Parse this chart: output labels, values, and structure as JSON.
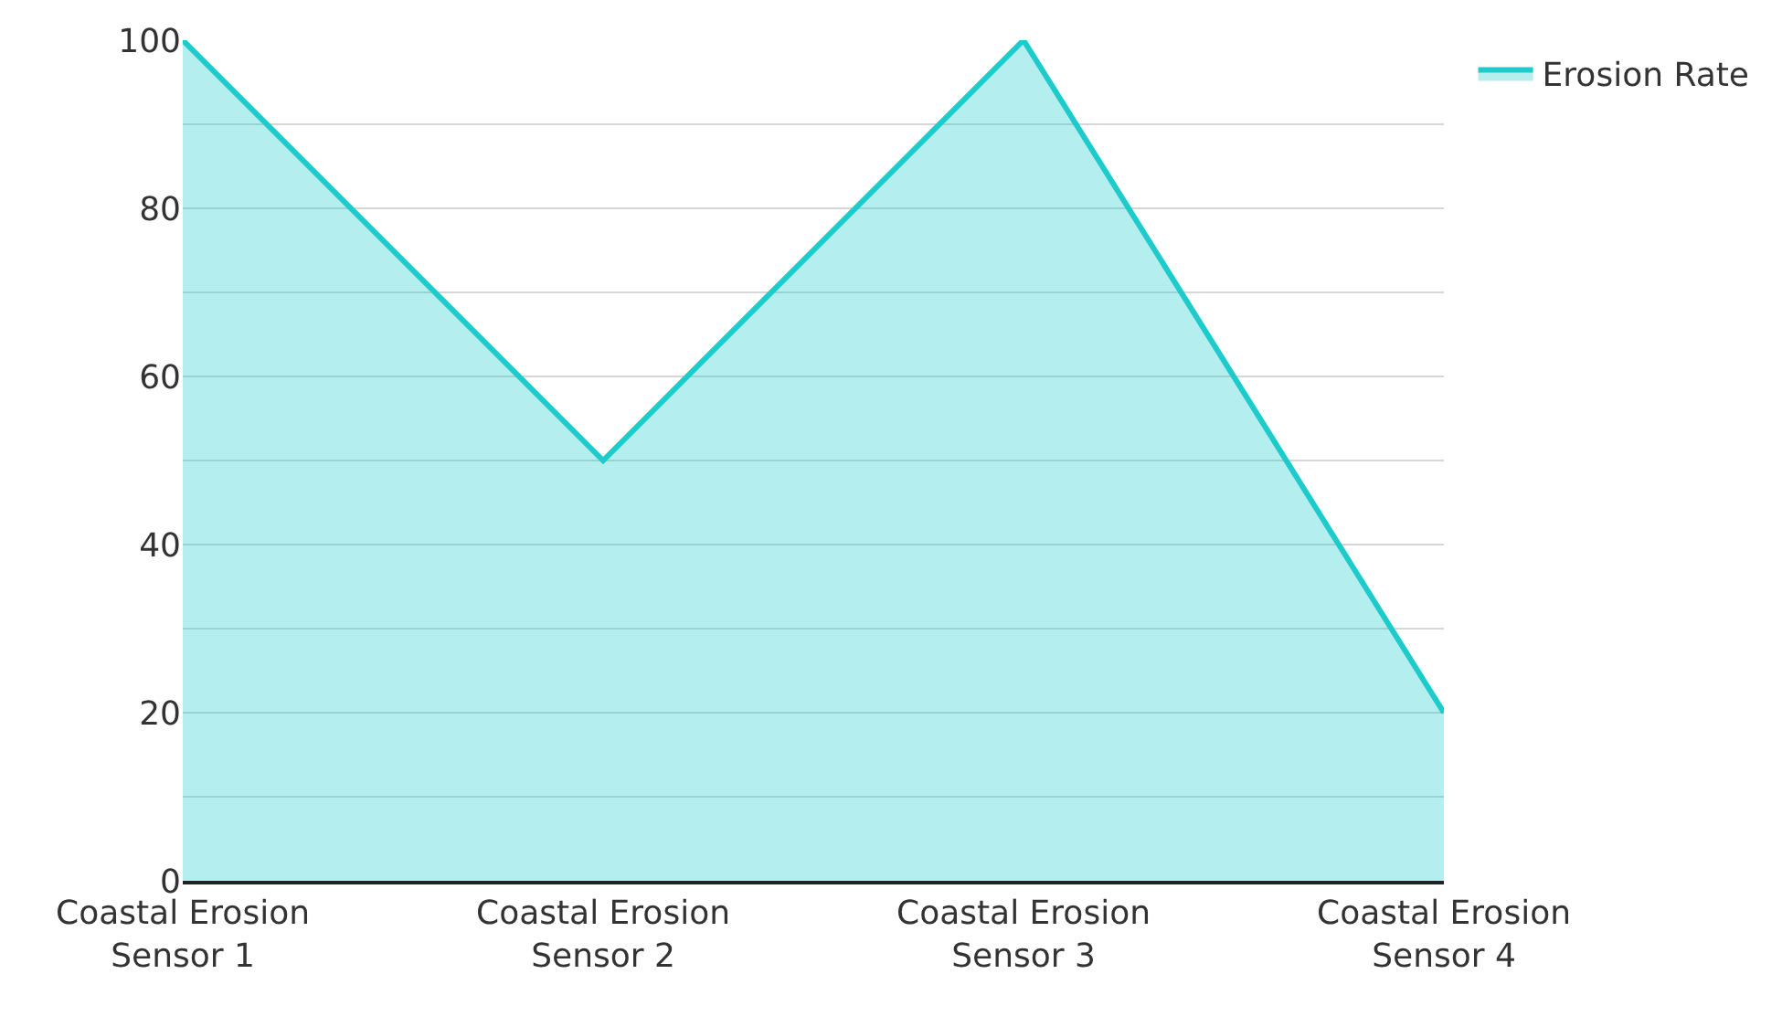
{
  "chart_data": {
    "type": "area",
    "categories": [
      "Coastal Erosion Sensor 1",
      "Coastal Erosion Sensor 2",
      "Coastal Erosion Sensor 3",
      "Coastal Erosion Sensor 4"
    ],
    "series": [
      {
        "name": "Erosion Rate",
        "color": "#1ecbcb",
        "values": [
          100,
          50,
          100,
          20
        ]
      }
    ],
    "ylim": [
      0,
      100
    ],
    "yticks": [
      0,
      {
        "value": 10,
        "label": null
      },
      20,
      {
        "value": 30,
        "label": null
      },
      40,
      {
        "value": 50,
        "label": null
      },
      60,
      {
        "value": 70,
        "label": null
      },
      80,
      {
        "value": 90,
        "label": null
      },
      100
    ],
    "grid": "y",
    "legend": "top right",
    "marker": "none",
    "line_style": "solid"
  }
}
